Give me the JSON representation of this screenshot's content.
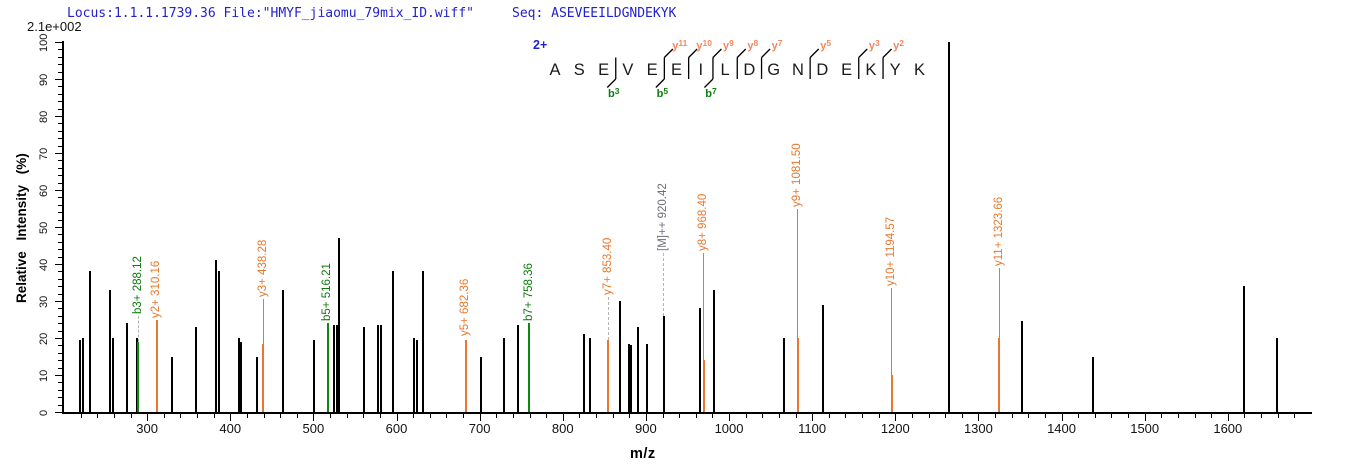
{
  "header": {
    "locus_file": "Locus:1.1.1.1739.36 File:\"HMYF_jiaomu_79mix_ID.wiff\"",
    "seq": "Seq: ASEVEEILDGNDEKYK",
    "intensity_scale": "2.1e+002"
  },
  "peptide": {
    "charge_label": "2+",
    "residues": [
      "A",
      "S",
      "E",
      "V",
      "E",
      "E",
      "I",
      "L",
      "D",
      "G",
      "N",
      "D",
      "E",
      "K",
      "Y",
      "K"
    ],
    "fragments": [
      {
        "after": 3,
        "b": "b3"
      },
      {
        "after": 5,
        "y": "y11",
        "b": "b5"
      },
      {
        "after": 6,
        "y": "y10"
      },
      {
        "after": 7,
        "y": "y9",
        "b": "b7"
      },
      {
        "after": 8,
        "y": "y8"
      },
      {
        "after": 9,
        "y": "y7"
      },
      {
        "after": 11,
        "y": "y5"
      },
      {
        "after": 13,
        "y": "y3"
      },
      {
        "after": 14,
        "y": "y2"
      }
    ]
  },
  "chart_data": {
    "type": "bar",
    "xlabel": "m/z",
    "ylabel": "Relative Intensity (%)",
    "x_range": [
      200,
      1700
    ],
    "y_range": [
      0,
      100
    ],
    "x_major_ticks": [
      300,
      400,
      500,
      600,
      700,
      800,
      900,
      1000,
      1100,
      1200,
      1300,
      1400,
      1500,
      1600
    ],
    "x_minor_step": 20,
    "y_major_step": 10,
    "y_minor_step": 2,
    "peaks": [
      [
        218,
        19.5
      ],
      [
        221,
        20
      ],
      [
        230,
        38
      ],
      [
        254,
        33
      ],
      [
        258,
        20
      ],
      [
        275,
        24
      ],
      [
        286,
        20
      ],
      [
        329,
        15
      ],
      [
        358,
        23
      ],
      [
        382,
        41
      ],
      [
        385,
        38
      ],
      [
        409,
        20
      ],
      [
        412,
        19
      ],
      [
        431,
        15
      ],
      [
        462,
        33
      ],
      [
        499,
        19.5
      ],
      [
        524,
        23.5
      ],
      [
        527,
        23.5
      ],
      [
        530,
        47
      ],
      [
        560,
        23
      ],
      [
        576,
        23.5
      ],
      [
        580,
        23.5
      ],
      [
        594,
        38
      ],
      [
        620,
        20
      ],
      [
        623,
        19.5
      ],
      [
        631,
        38
      ],
      [
        700,
        15
      ],
      [
        728,
        20
      ],
      [
        745,
        23.5
      ],
      [
        824,
        21
      ],
      [
        832,
        20
      ],
      [
        867,
        30
      ],
      [
        878,
        18.5
      ],
      [
        881,
        18
      ],
      [
        889,
        23
      ],
      [
        900,
        18.5
      ],
      [
        964,
        28
      ],
      [
        981,
        33
      ],
      [
        1065,
        20
      ],
      [
        1112,
        29
      ],
      [
        1263,
        100
      ],
      [
        1351,
        24.5
      ],
      [
        1436,
        15
      ],
      [
        1618,
        34
      ],
      [
        1658,
        20
      ]
    ],
    "annotated_peaks": [
      {
        "ion": "b3",
        "label": "b3+ 288.12",
        "mz": 288.12,
        "intensity": 19,
        "color": "green",
        "connector": "dashed",
        "label_from": 26
      },
      {
        "ion": "y2",
        "label": "y2+ 310.16",
        "mz": 310.16,
        "intensity": 25,
        "color": "orange",
        "connector": "none",
        "label_from": 25
      },
      {
        "ion": "y3",
        "label": "y3+ 438.28",
        "mz": 438.28,
        "intensity": 18.5,
        "color": "orange",
        "connector": "solid",
        "label_from": 30.5
      },
      {
        "ion": "b5",
        "label": "b5+ 516.21",
        "mz": 516.21,
        "intensity": 24,
        "color": "green",
        "connector": "none",
        "label_from": 24
      },
      {
        "ion": "y5",
        "label": "y5+ 682.36",
        "mz": 682.36,
        "intensity": 19.5,
        "color": "orange",
        "connector": "none",
        "label_from": 20
      },
      {
        "ion": "b7",
        "label": "b7+ 758.36",
        "mz": 758.36,
        "intensity": 24,
        "color": "green",
        "connector": "none",
        "label_from": 24
      },
      {
        "ion": "y7",
        "label": "y7+ 853.40",
        "mz": 853.4,
        "intensity": 19.5,
        "color": "orange",
        "connector": "dashed",
        "label_from": 31
      },
      {
        "ion": "M",
        "label": "[M]++ 920.42",
        "mz": 920.42,
        "intensity": 26,
        "color": "black",
        "connector": "dashed",
        "label_from": 43
      },
      {
        "ion": "y8",
        "label": "y8+ 968.40",
        "mz": 968.4,
        "intensity": 14,
        "color": "orange",
        "connector": "solid",
        "label_from": 43
      },
      {
        "ion": "y9",
        "label": "y9+ 1081.50",
        "mz": 1081.5,
        "intensity": 20,
        "color": "orange",
        "connector": "solid",
        "label_from": 55
      },
      {
        "ion": "y10",
        "label": "y10+ 1194.57",
        "mz": 1194.57,
        "intensity": 10,
        "color": "orange",
        "connector": "solid",
        "label_from": 33.5
      },
      {
        "ion": "y11",
        "label": "y11+ 1323.66",
        "mz": 1323.66,
        "intensity": 20,
        "color": "orange",
        "connector": "solid",
        "label_from": 39
      }
    ]
  },
  "colors": {
    "orange": "#e8782e",
    "salmon": "#f4875f",
    "green": "#0e8a0e",
    "green_label": "#0c7a0c",
    "blue": "#2222cc",
    "gray_label": "#6e6e78",
    "connector_gray": "#b5b5b5",
    "peak_black": "#000000"
  }
}
